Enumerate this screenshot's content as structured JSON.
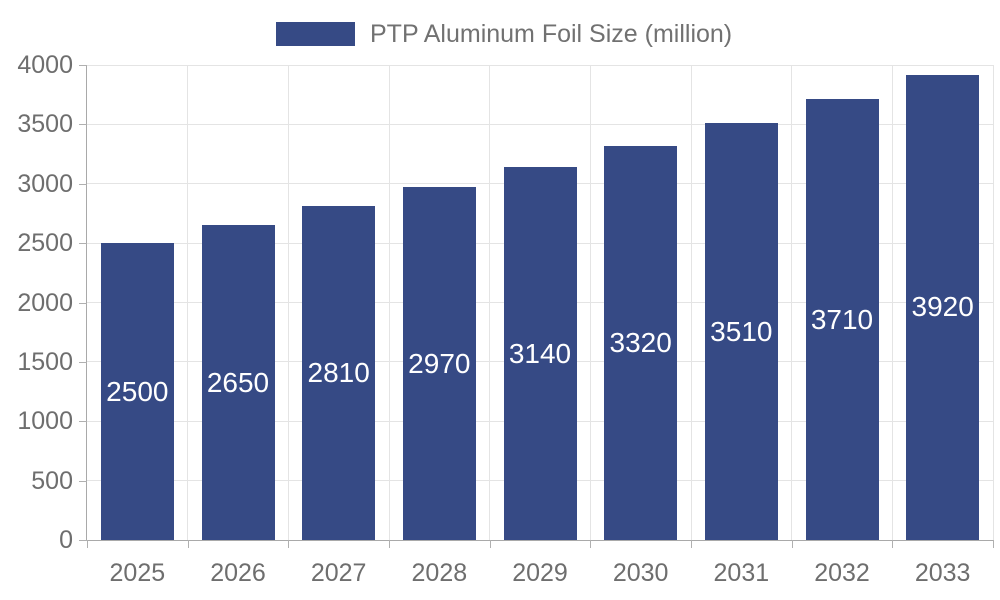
{
  "chart_data": {
    "type": "bar",
    "title": "",
    "series_name": "PTP Aluminum Foil Size (million)",
    "categories": [
      "2025",
      "2026",
      "2027",
      "2028",
      "2029",
      "2030",
      "2031",
      "2032",
      "2033"
    ],
    "values": [
      2500,
      2650,
      2810,
      2970,
      3140,
      3320,
      3510,
      3710,
      3920
    ],
    "xlabel": "",
    "ylabel": "",
    "ylim": [
      0,
      4000
    ],
    "yticks": [
      0,
      500,
      1000,
      1500,
      2000,
      2500,
      3000,
      3500,
      4000
    ],
    "grid": true,
    "legend_position": "top-center",
    "bar_value_labels_shown": true,
    "colors": {
      "bar": "#364a85",
      "bar_label": "#ffffff",
      "axis_label": "#6e6e6e",
      "legend_text": "#717171",
      "grid_line": "#e4e4e4",
      "axis_line": "#a9a9a9",
      "tick": "#b0b0b0",
      "background": "#ffffff"
    }
  }
}
